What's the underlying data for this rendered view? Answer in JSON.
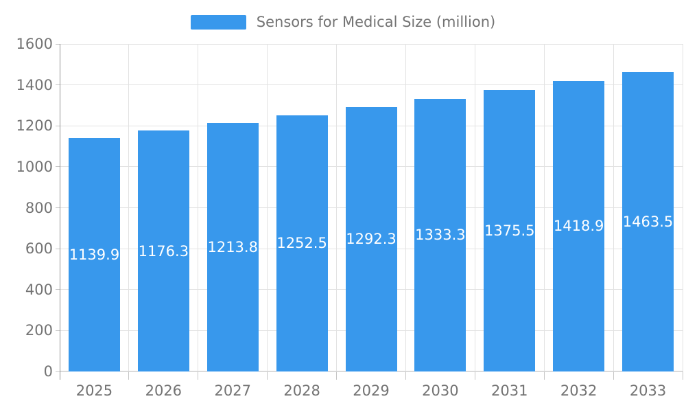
{
  "legend": {
    "label": "Sensors for Medical Size (million)"
  },
  "colors": {
    "bar": "#3898EC",
    "grid_line": "#E2E2E2",
    "x_axis_line": "#B3B3B3",
    "y_axis_line": "#8F8F8F",
    "tick": "#C6C6C6",
    "axis_text": "#737373",
    "value_text": "#FFFFFF",
    "background": "#FFFFFF"
  },
  "chart_data": {
    "type": "bar",
    "title": "",
    "categories": [
      "2025",
      "2026",
      "2027",
      "2028",
      "2029",
      "2030",
      "2031",
      "2032",
      "2033"
    ],
    "series": [
      {
        "name": "Sensors for Medical Size (million)",
        "values": [
          1139.9,
          1176.3,
          1213.8,
          1252.5,
          1292.3,
          1333.3,
          1375.5,
          1418.9,
          1463.5
        ]
      }
    ],
    "value_labels": [
      "1139.9",
      "1176.3",
      "1213.8",
      "1252.5",
      "1292.3",
      "1333.3",
      "1375.5",
      "1418.9",
      "1463.5"
    ],
    "xlabel": "",
    "ylabel": "",
    "ylim": [
      0,
      1600
    ],
    "ytick_interval": 200,
    "ytick_labels": [
      "0",
      "200",
      "400",
      "600",
      "800",
      "1000",
      "1200",
      "1400",
      "1600"
    ],
    "grid": true,
    "legend_position": "top-center",
    "value_label_position": "inside-center"
  }
}
